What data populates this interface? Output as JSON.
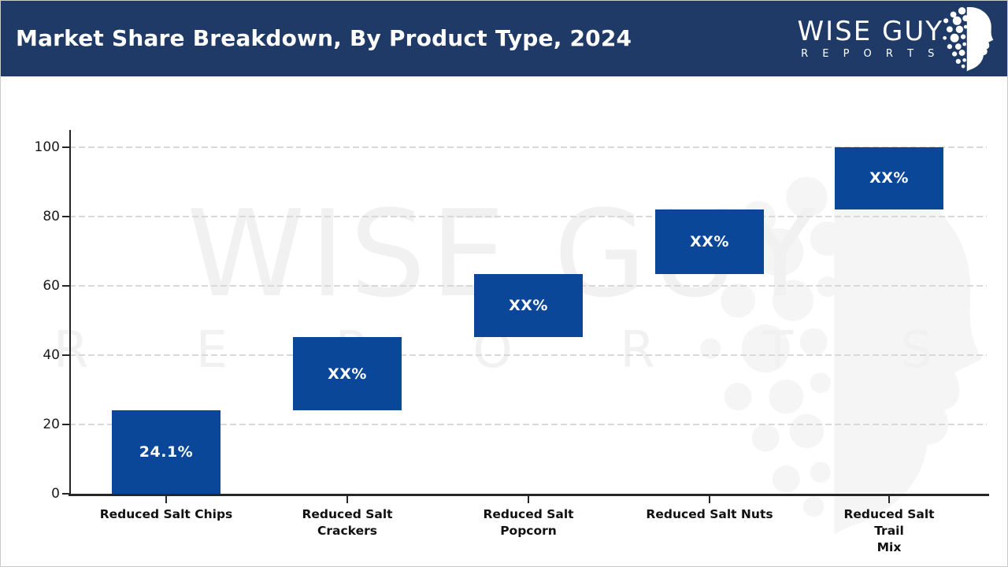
{
  "header": {
    "title": "Market Share Breakdown, By Product Type, 2024",
    "logo": {
      "line1": "WISE GUY",
      "line2": "R E P O R T S"
    }
  },
  "watermark": {
    "line1": "WISE GUY",
    "line2": "R E P O R T S"
  },
  "colors": {
    "header_bg": "#1f3a66",
    "bar": "#0a4798",
    "grid": "#d9d9d9",
    "axis": "#262626",
    "bar_label": "#ffffff",
    "watermark": "#f1f1f1"
  },
  "chart_data": {
    "type": "bar",
    "subtype": "waterfall",
    "title": "Market Share Breakdown, By Product Type, 2024",
    "xlabel": "",
    "ylabel": "",
    "ylim": [
      0,
      100
    ],
    "yticks": [
      0,
      20,
      40,
      60,
      80,
      100
    ],
    "grid": "horizontal-dashed",
    "legend": "none",
    "categories": [
      "Reduced Salt Chips",
      "Reduced Salt Crackers",
      "Reduced Salt Popcorn",
      "Reduced Salt Nuts",
      "Reduced Salt Trail Mix"
    ],
    "categories_wrapped": [
      [
        "Reduced Salt Chips"
      ],
      [
        "Reduced Salt",
        "Crackers"
      ],
      [
        "Reduced Salt",
        "Popcorn"
      ],
      [
        "Reduced Salt Nuts"
      ],
      [
        "Reduced Salt Trail",
        "Mix"
      ]
    ],
    "series": [
      {
        "name": "Market Share",
        "segments": [
          {
            "category": "Reduced Salt Chips",
            "start": 0,
            "end": 24.1,
            "label": "24.1%"
          },
          {
            "category": "Reduced Salt Crackers",
            "start": 24.1,
            "end": 45.2,
            "label": "XX%"
          },
          {
            "category": "Reduced Salt Popcorn",
            "start": 45.2,
            "end": 63.4,
            "label": "XX%"
          },
          {
            "category": "Reduced Salt Nuts",
            "start": 63.4,
            "end": 82.1,
            "label": "XX%"
          },
          {
            "category": "Reduced Salt Trail Mix",
            "start": 82.1,
            "end": 100,
            "label": "XX%"
          }
        ]
      }
    ]
  }
}
